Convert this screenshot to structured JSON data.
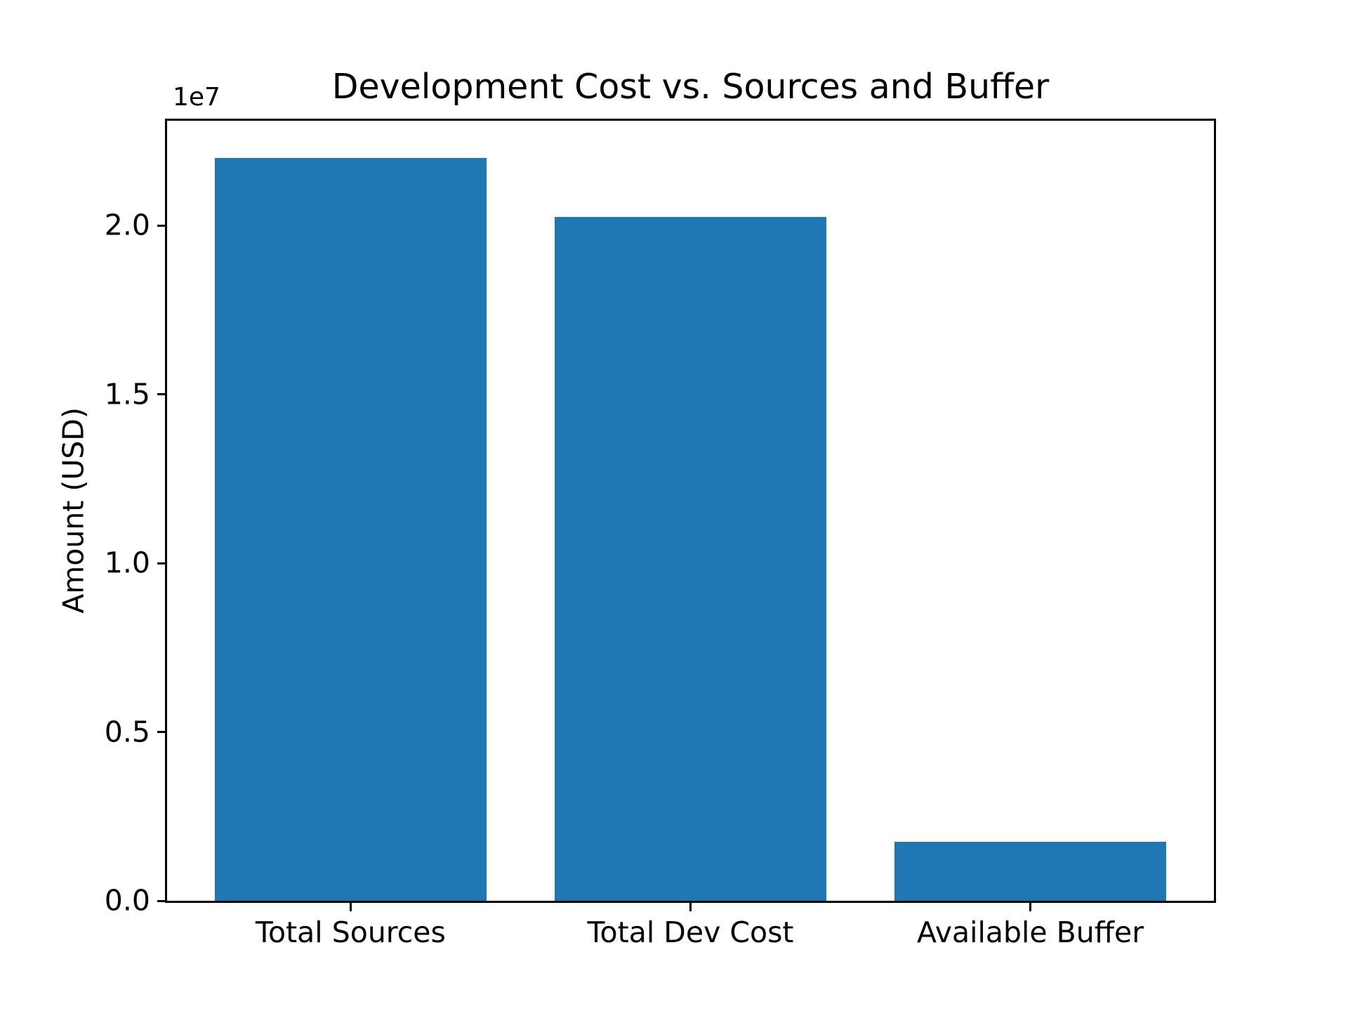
{
  "chart_data": {
    "type": "bar",
    "title": "Development Cost vs. Sources and Buffer",
    "ylabel": "Amount (USD)",
    "xlabel": "",
    "offset_text": "1e7",
    "categories": [
      "Total Sources",
      "Total Dev Cost",
      "Available Buffer"
    ],
    "values": [
      22000000,
      20250000,
      1750000
    ],
    "bar_color": "#1f77b4",
    "text_color": "#000000",
    "bar_width": 0.8,
    "xlim": [
      -0.54,
      2.54
    ],
    "ylim": [
      0,
      23100000
    ],
    "yticks": {
      "values": [
        0,
        5000000,
        10000000,
        15000000,
        20000000
      ],
      "labels": [
        "0.0",
        "0.5",
        "1.0",
        "1.5",
        "2.0"
      ]
    },
    "grid": false,
    "legend": "none"
  }
}
